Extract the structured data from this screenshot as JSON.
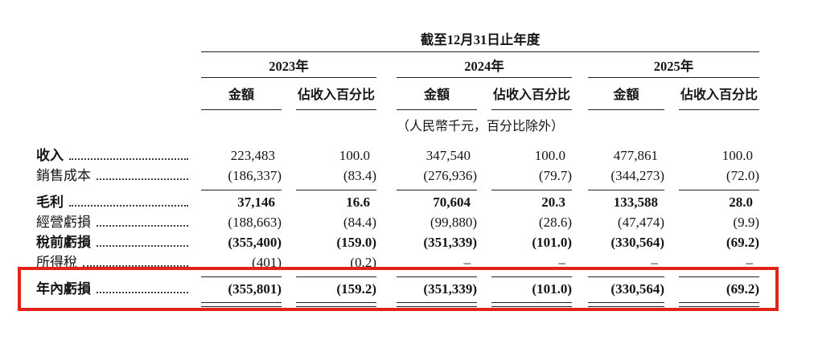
{
  "header": {
    "period_title": "截至12月31日止年度",
    "years": [
      "2023年",
      "2024年",
      "2025年"
    ],
    "amount_label": "金額",
    "percent_label": "佔收入百分比",
    "unit_note": "（人民幣千元，百分比除外）"
  },
  "table": {
    "rows": [
      {
        "label": "收入",
        "values": [
          "223,483",
          "100.0",
          "347,540",
          "100.0",
          "477,861",
          "100.0"
        ]
      },
      {
        "label": "銷售成本",
        "values": [
          "(186,337)",
          "(83.4)",
          "(276,936)",
          "(79.7)",
          "(344,273)",
          "(72.0)"
        ]
      },
      {
        "label": "毛利",
        "values": [
          "37,146",
          "16.6",
          "70,604",
          "20.3",
          "133,588",
          "28.0"
        ]
      },
      {
        "label": "經營虧損",
        "values": [
          "(188,663)",
          "(84.4)",
          "(99,880)",
          "(28.6)",
          "(47,474)",
          "(9.9)"
        ]
      },
      {
        "label": "稅前虧損",
        "values": [
          "(355,400)",
          "(159.0)",
          "(351,339)",
          "(101.0)",
          "(330,564)",
          "(69.2)"
        ]
      },
      {
        "label": "所得稅",
        "values": [
          "(401)",
          "(0.2)",
          "–",
          "–",
          "–",
          "–"
        ]
      },
      {
        "label": "年內虧損",
        "values": [
          "(355,801)",
          "(159.2)",
          "(351,339)",
          "(101.0)",
          "(330,564)",
          "(69.2)"
        ]
      }
    ]
  },
  "highlight": {
    "color": "#e2231a"
  }
}
